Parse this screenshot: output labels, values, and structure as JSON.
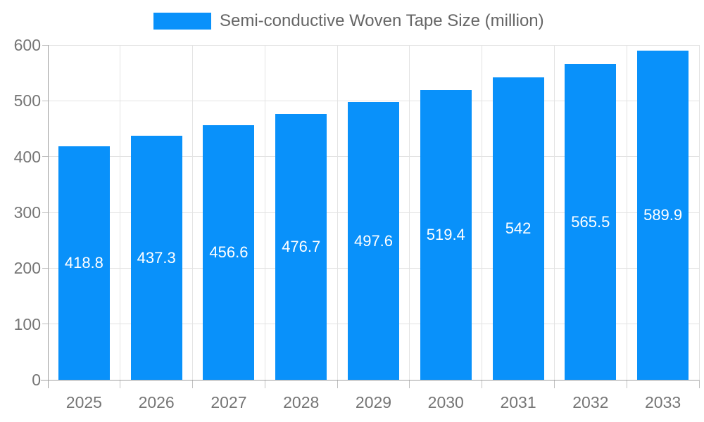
{
  "chart_data": {
    "type": "bar",
    "title": "Semi-conductive Woven Tape Size (million)",
    "legend": [
      {
        "label": "Semi-conductive Woven Tape Size (million)"
      }
    ],
    "legend_position": "top",
    "categories": [
      "2025",
      "2026",
      "2027",
      "2028",
      "2029",
      "2030",
      "2031",
      "2032",
      "2033"
    ],
    "series": [
      {
        "name": "Semi-conductive Woven Tape Size (million)",
        "values": [
          418.8,
          437.3,
          456.6,
          476.7,
          497.6,
          519.4,
          542,
          565.5,
          589.9
        ]
      }
    ],
    "data_labels_visible": true,
    "xlabel": "",
    "ylabel": "",
    "ylim": [
      0,
      600
    ],
    "yticks": [
      0,
      100,
      200,
      300,
      400,
      500,
      600
    ],
    "grid": true,
    "colors": {
      "bar": "#0991FA",
      "grid_line": "#e3e3e3",
      "axis_line": "#a0a0a0",
      "tick_mark": "#c0c0c0",
      "axis_label_text": "#757575",
      "legend_text": "#666666",
      "bar_label_text": "#ffffff",
      "background": "#ffffff"
    }
  }
}
